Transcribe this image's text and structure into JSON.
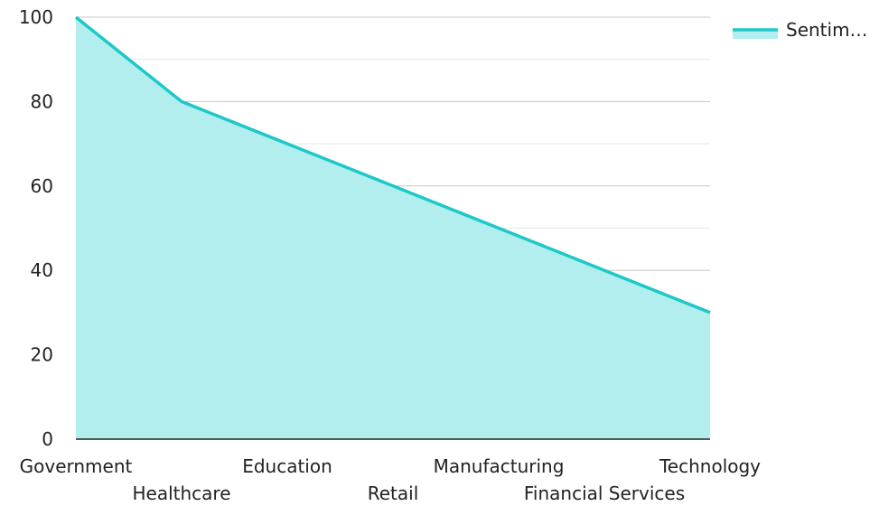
{
  "chart_data": {
    "type": "area",
    "categories": [
      "Government",
      "Healthcare",
      "Education",
      "Retail",
      "Manufacturing",
      "Financial Services",
      "Technology"
    ],
    "series": [
      {
        "name": "Sentim…",
        "values": [
          100,
          80,
          70,
          60,
          50,
          40,
          30
        ],
        "color": "#1ec8c8",
        "fill": "#b2eeee"
      }
    ],
    "ylim": [
      0,
      100
    ],
    "yticks": [
      "0",
      "20",
      "40",
      "60",
      "80",
      "100"
    ],
    "grid": true,
    "legend": "top-right",
    "xlabel": "",
    "ylabel": "",
    "title": ""
  }
}
